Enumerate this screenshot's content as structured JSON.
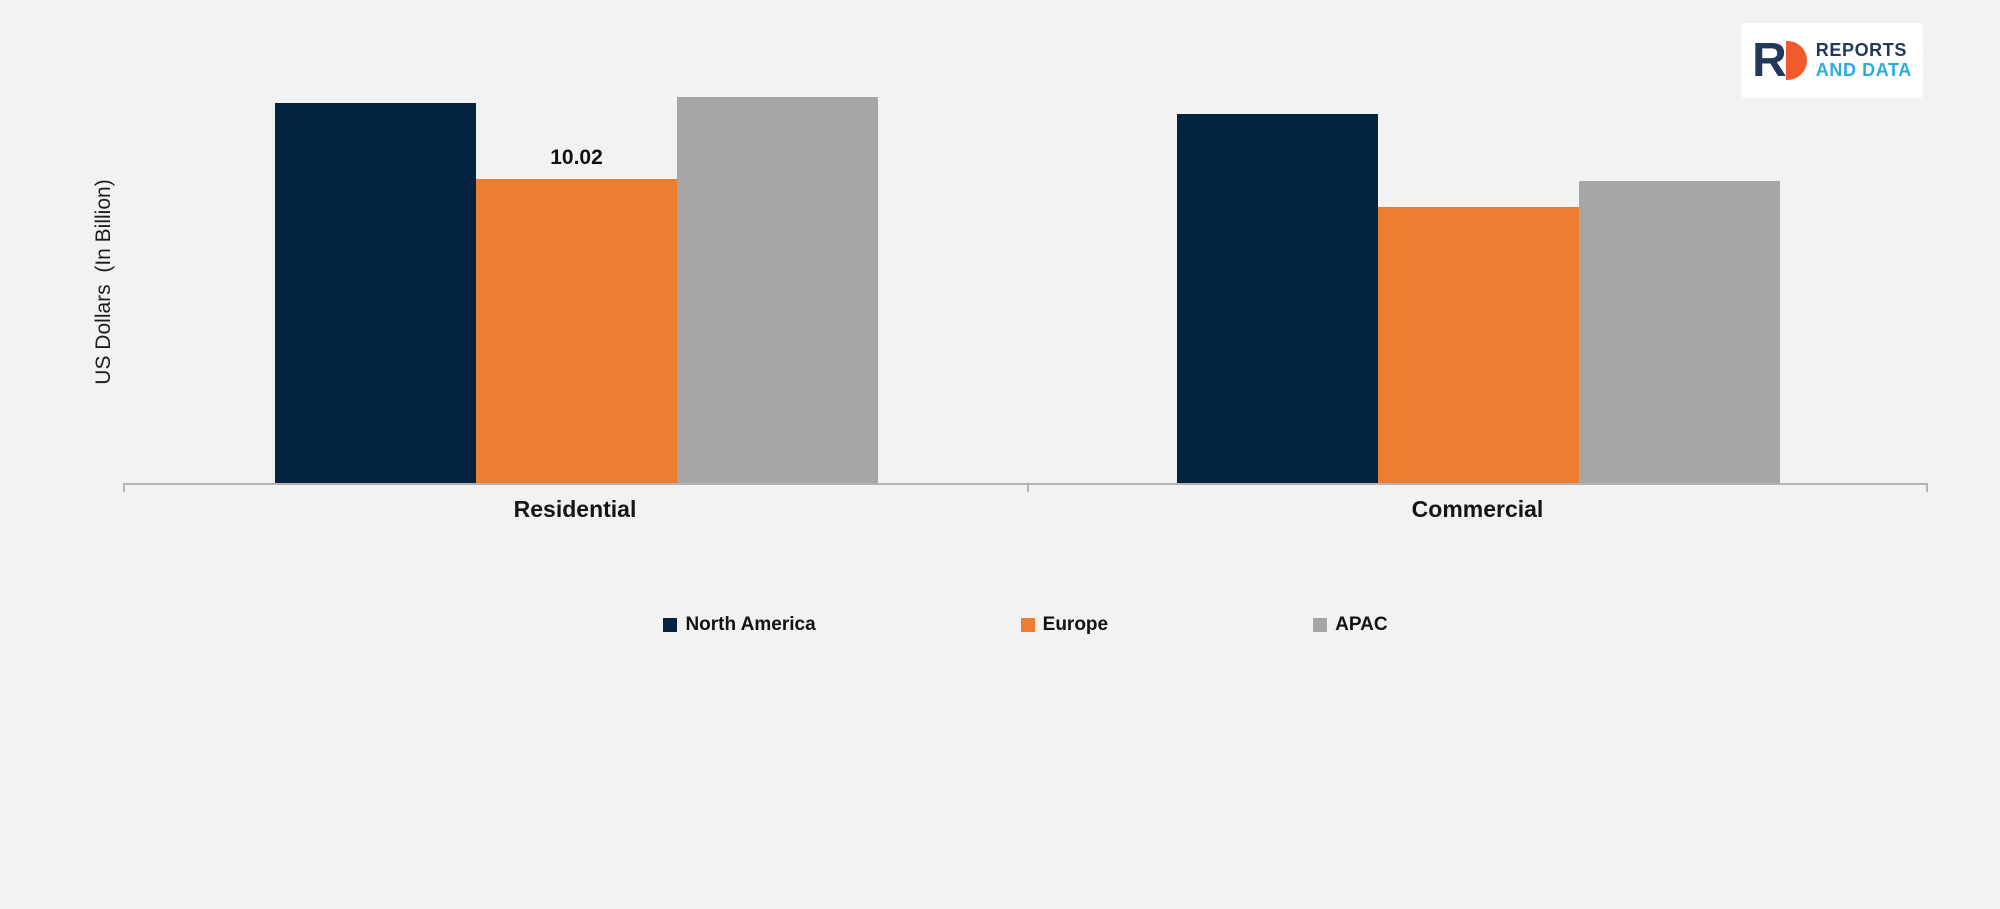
{
  "page": {
    "background_color": "#F1F2F1"
  },
  "logo": {
    "mark": "R",
    "line1": "REPORTS",
    "line2": "AND DATA",
    "navy": "#22395B",
    "orange": "#F15B2B",
    "cyan": "#29ABE2"
  },
  "chart_data": {
    "type": "bar",
    "title": "",
    "ylabel": "US Dollars  (In Billion)",
    "xlabel": "",
    "categories": [
      "Residential",
      "Commercial"
    ],
    "series": [
      {
        "name": "North America",
        "color": "#042340",
        "values": [
          12.5,
          12.15
        ]
      },
      {
        "name": "Europe",
        "color": "#ED7D31",
        "values": [
          10.02,
          9.1
        ]
      },
      {
        "name": "APAC",
        "color": "#A6A6A6",
        "values": [
          12.7,
          9.95
        ]
      }
    ],
    "data_labels": [
      {
        "series_index": 1,
        "category_index": 0,
        "text": "10.02"
      }
    ],
    "ylim": [
      0,
      13.5
    ],
    "grid": false,
    "legend_position": "bottom",
    "axis_color": "#B3B3B3"
  }
}
